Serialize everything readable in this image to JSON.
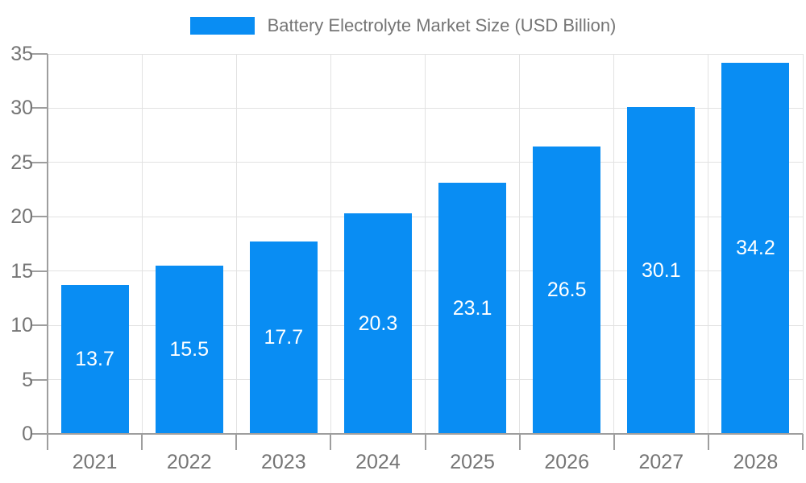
{
  "legend": {
    "items": [
      {
        "label": "Battery Electrolyte Market Size (USD Billion)",
        "color": "#098df3"
      }
    ]
  },
  "chart_data": {
    "type": "bar",
    "title": "Battery Electrolyte Market Size (USD Billion)",
    "series_name": "Battery Electrolyte Market Size (USD Billion)",
    "categories": [
      "2021",
      "2022",
      "2023",
      "2024",
      "2025",
      "2026",
      "2027",
      "2028"
    ],
    "values": [
      13.7,
      15.5,
      17.7,
      20.3,
      23.1,
      26.5,
      30.1,
      34.2
    ],
    "xlabel": "",
    "ylabel": "",
    "ylim": [
      0,
      35
    ],
    "yticks": [
      0,
      5,
      10,
      15,
      20,
      25,
      30,
      35
    ],
    "grid": true,
    "legend_position": "top-center",
    "value_label_position": "inside-center",
    "colors": {
      "bar": "#098df3",
      "value_label": "#ffffff",
      "axis_text": "#757575",
      "axis_line": "#9e9e9e",
      "gridline": "#e2e2e2",
      "background": "#ffffff"
    }
  }
}
